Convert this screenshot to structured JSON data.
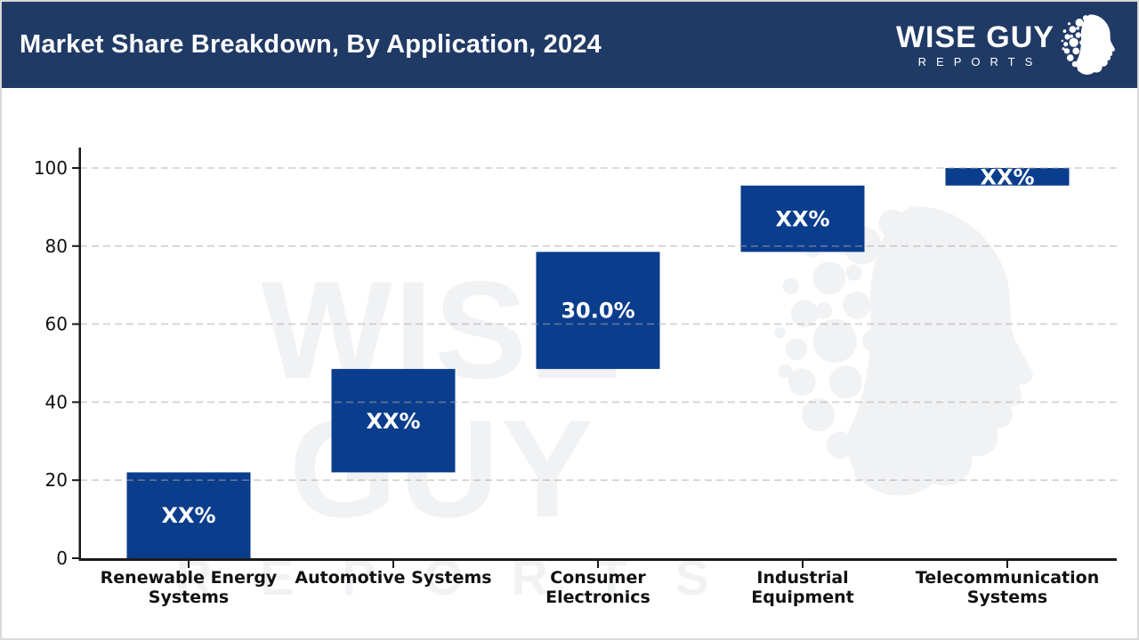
{
  "header": {
    "title": "Market Share Breakdown, By Application, 2024",
    "brand": {
      "line1": "WISE GUY",
      "line2": "REPORTS"
    },
    "bg_color": "#203a66"
  },
  "watermark": {
    "line1": "WISE GUY",
    "line2": "REPORTS"
  },
  "chart_data": {
    "type": "bar",
    "subtype": "floating-segment waterfall",
    "title": "Market Share Breakdown, By Application, 2024",
    "categories": [
      "Renewable Energy Systems",
      "Automotive Systems",
      "Consumer Electronics",
      "Industrial Equipment",
      "Telecommunication Systems"
    ],
    "category_label_lines": [
      [
        "Renewable Energy",
        "Systems"
      ],
      [
        "Automotive Systems"
      ],
      [
        "Consumer",
        "Electronics"
      ],
      [
        "Industrial",
        "Equipment"
      ],
      [
        "Telecommunication",
        "Systems"
      ]
    ],
    "series": [
      {
        "name": "Market share (%)",
        "segments": [
          {
            "category": "Renewable Energy Systems",
            "from": 0,
            "to": 22,
            "label": "XX%"
          },
          {
            "category": "Automotive Systems",
            "from": 22,
            "to": 48.5,
            "label": "XX%"
          },
          {
            "category": "Consumer Electronics",
            "from": 48.5,
            "to": 78.5,
            "label": "30.0%"
          },
          {
            "category": "Industrial Equipment",
            "from": 78.5,
            "to": 95.5,
            "label": "XX%"
          },
          {
            "category": "Telecommunication Systems",
            "from": 95.5,
            "to": 100,
            "label": "XX%"
          }
        ]
      }
    ],
    "ylim": [
      0,
      100
    ],
    "yticks": [
      0,
      20,
      40,
      60,
      80,
      100
    ],
    "grid": "horizontal dashed",
    "legend": "none",
    "bar_color": "#0a3d8c",
    "label_color": "#ffffff",
    "axis_color": "#1a1a1a",
    "gridline_color": "#d9d9d9"
  }
}
